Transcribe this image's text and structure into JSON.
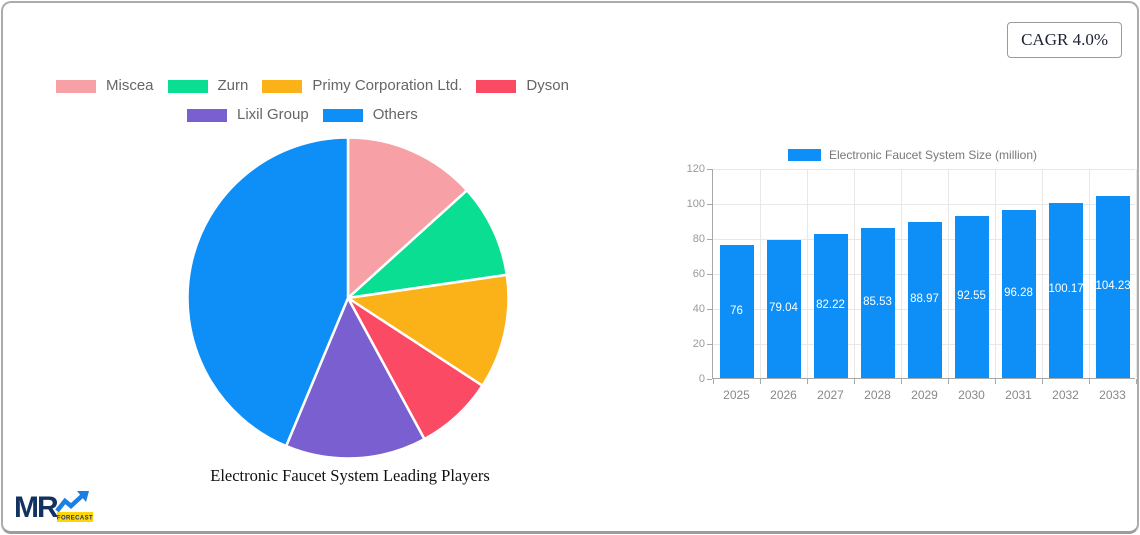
{
  "card": {
    "cagr_label": "CAGR 4.0%"
  },
  "pie_section": {
    "title": "Electronic Faucet System Leading Players",
    "legend_row_split": [
      4,
      2
    ]
  },
  "bar_section": {
    "legend_label": "Electronic Faucet System Size (million)"
  },
  "chart_data": [
    {
      "type": "pie",
      "title": "Electronic Faucet System Leading Players",
      "labels": [
        "Miscea",
        "Zurn",
        "Primy Corporation Ltd.",
        "Dyson",
        "Lixil Group",
        "Others"
      ],
      "values_percent": [
        13.3,
        9.4,
        11.5,
        7.9,
        14.2,
        43.7
      ],
      "colors": [
        "#F7A1A7",
        "#0ADE92",
        "#FBB118",
        "#FB4A63",
        "#7A5FD0",
        "#0D8FF7"
      ],
      "start_angle_deg": 0,
      "direction": "clockwise",
      "legend_position": "top",
      "slice_border_color": "#ffffff"
    },
    {
      "type": "bar",
      "series_label": "Electronic Faucet System Size (million)",
      "categories": [
        "2025",
        "2026",
        "2027",
        "2028",
        "2029",
        "2030",
        "2031",
        "2032",
        "2033"
      ],
      "values": [
        76,
        79.04,
        82.22,
        85.53,
        88.97,
        92.55,
        96.28,
        100.17,
        104.23
      ],
      "bar_color": "#0D8FF7",
      "value_label_color": "#ffffff",
      "ylim": [
        0,
        120
      ],
      "yticks": [
        0,
        20,
        40,
        60,
        80,
        100,
        120
      ],
      "grid": true,
      "legend_position": "top"
    }
  ],
  "logo": {
    "text": "MR",
    "badge": "FORECAST"
  }
}
